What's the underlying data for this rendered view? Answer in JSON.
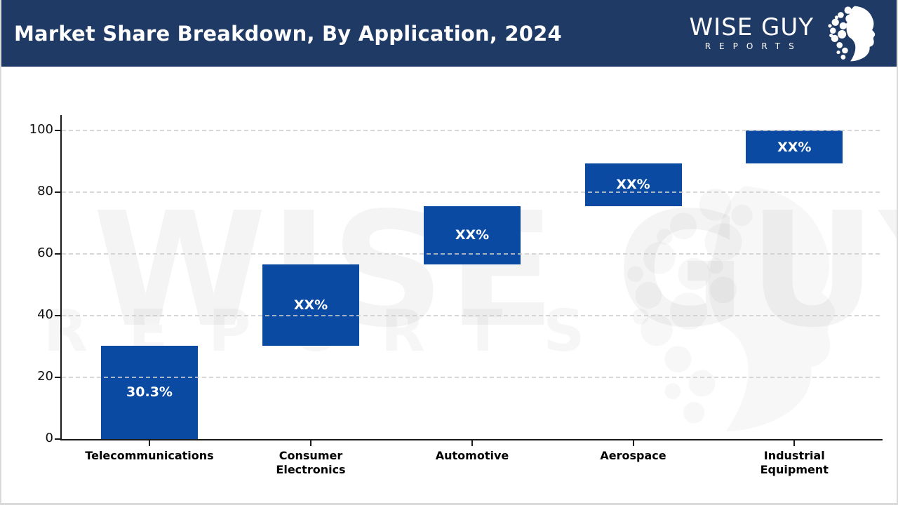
{
  "header": {
    "title": "Market Share Breakdown, By Application, 2024",
    "bg_color": "#203a66",
    "logo": {
      "line1": "WISE GUY",
      "line2": "REPORTS"
    }
  },
  "watermark": {
    "line1": "WISE GUY",
    "line2": "REPORTS"
  },
  "chart_data": {
    "type": "bar",
    "subtype": "waterfall",
    "title": "Market Share Breakdown, By Application, 2024",
    "categories": [
      [
        "Telecommunications"
      ],
      [
        "Consumer",
        "Electronics"
      ],
      [
        "Automotive"
      ],
      [
        "Aerospace"
      ],
      [
        "Industrial",
        "Equipment"
      ]
    ],
    "segments": [
      {
        "category": "Telecommunications",
        "start": 0,
        "end": 30.3,
        "label": "30.3%"
      },
      {
        "category": "Consumer Electronics",
        "start": 30.3,
        "end": 56.6,
        "label": "XX%"
      },
      {
        "category": "Automotive",
        "start": 56.6,
        "end": 75.5,
        "label": "XX%"
      },
      {
        "category": "Aerospace",
        "start": 75.5,
        "end": 89.3,
        "label": "XX%"
      },
      {
        "category": "Industrial Equipment",
        "start": 89.3,
        "end": 100,
        "label": "XX%"
      }
    ],
    "y_ticks": [
      0,
      20,
      40,
      60,
      80,
      100
    ],
    "ylim": [
      0,
      105
    ],
    "xlabel": "",
    "ylabel": "",
    "grid": "horizontal-dashed",
    "legend": "none",
    "bar_color": "#0b4aa2",
    "label_color": "#ffffff"
  }
}
